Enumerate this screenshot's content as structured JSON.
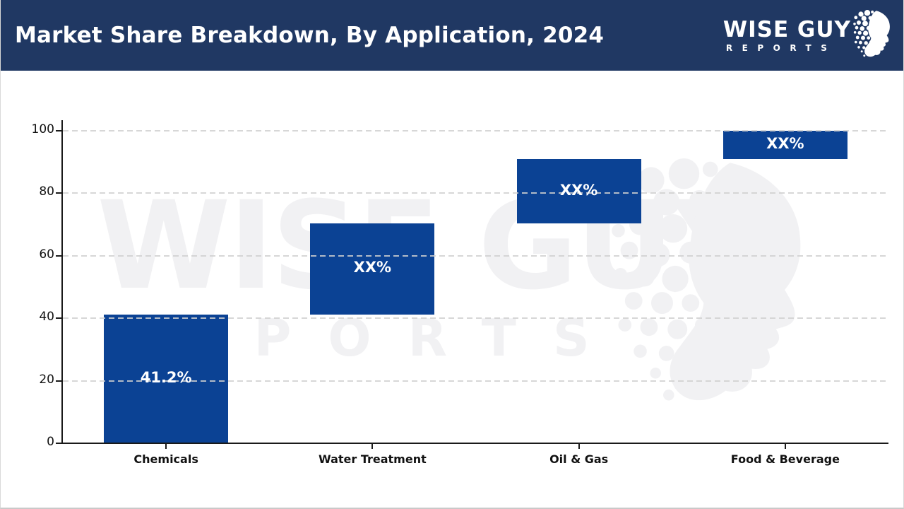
{
  "header": {
    "title": "Market Share Breakdown, By Application, 2024",
    "logo": {
      "wordmark": "WISE GUY",
      "subtext": "REPORTS"
    }
  },
  "watermark": {
    "line1": "WISE GUY",
    "line2": "REPORTS"
  },
  "chart_data": {
    "type": "bar",
    "subtype": "waterfall",
    "title": "Market Share Breakdown, By Application, 2024",
    "categories": [
      "Chemicals",
      "Water Treatment",
      "Oil & Gas",
      "Food & Beverage"
    ],
    "segments": [
      {
        "category": "Chemicals",
        "start": 0,
        "end": 41.2,
        "label": "41.2%"
      },
      {
        "category": "Water Treatment",
        "start": 41.2,
        "end": 70.3,
        "label": "XX%"
      },
      {
        "category": "Oil & Gas",
        "start": 70.3,
        "end": 90.8,
        "label": "XX%"
      },
      {
        "category": "Food & Beverage",
        "start": 90.8,
        "end": 100,
        "label": "XX%"
      }
    ],
    "xlabel": "",
    "ylabel": "",
    "ylim": [
      0,
      100
    ],
    "yticks": [
      0,
      20,
      40,
      60,
      80,
      100
    ],
    "grid": "horizontal-dashed-above-bars",
    "legend": "none",
    "bar_color": "#0b4294",
    "bar_label_color": "#ffffff"
  },
  "colors": {
    "header_bg": "#203863",
    "bar": "#0b4294",
    "watermark": "#f1f1f3",
    "gridline": "#d0d0d0",
    "axis": "#1a1a1a"
  }
}
